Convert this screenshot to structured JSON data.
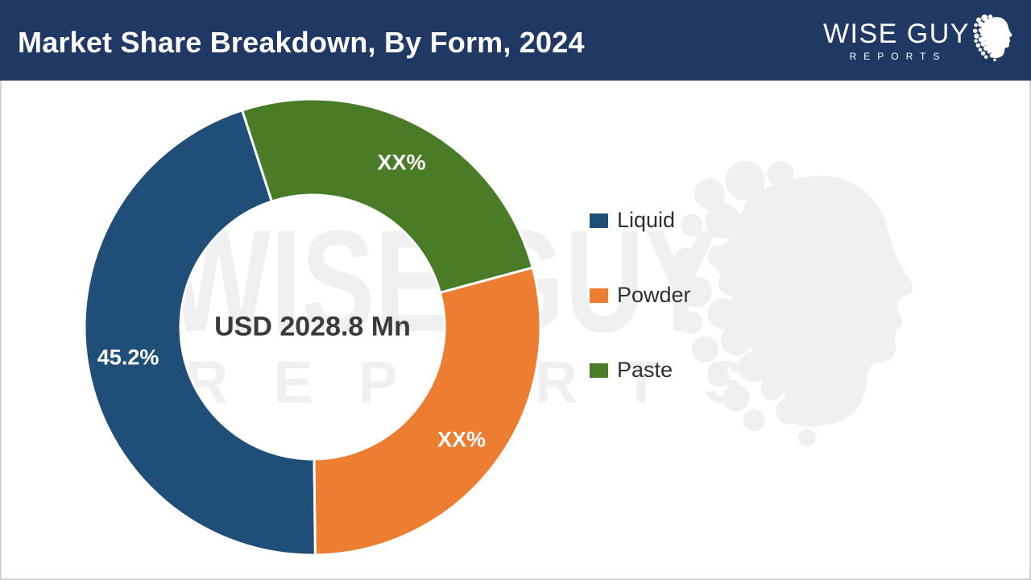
{
  "header": {
    "title": "Market Share Breakdown, By Form, 2024",
    "bg_color": "#1f3864",
    "logo": {
      "line1": "WISE GUY",
      "line2": "REPORTS"
    }
  },
  "watermark": {
    "line1": "WISE GUY",
    "line2": "REPORTS"
  },
  "chart_data": {
    "type": "pie",
    "subtype": "donut",
    "title": "Market Share Breakdown, By Form, 2024",
    "center_label": "USD 2028.8 Mn",
    "start_angle_deg": 179.3,
    "inner_radius_ratio": 0.58,
    "label_radius": 232,
    "segments": [
      {
        "label": "Liquid",
        "pct": 45.2,
        "display": "45.2%",
        "color": "#1f4e79"
      },
      {
        "label": "Paste",
        "pct": 25.8,
        "display": "XX%",
        "color": "#4a7c28"
      },
      {
        "label": "Powder",
        "pct": 29.0,
        "display": "XX%",
        "color": "#ed7d31"
      }
    ],
    "legend": {
      "position": "right",
      "items": [
        "Liquid",
        "Powder",
        "Paste"
      ]
    }
  },
  "colors": {
    "header_bg": "#1f3864",
    "panel_border": "#d4d4d4",
    "watermark": "#f0f0f3",
    "center_text": "#3b3b3b",
    "legend_text": "#2f2f2f",
    "segment_gap": "#ffffff"
  }
}
